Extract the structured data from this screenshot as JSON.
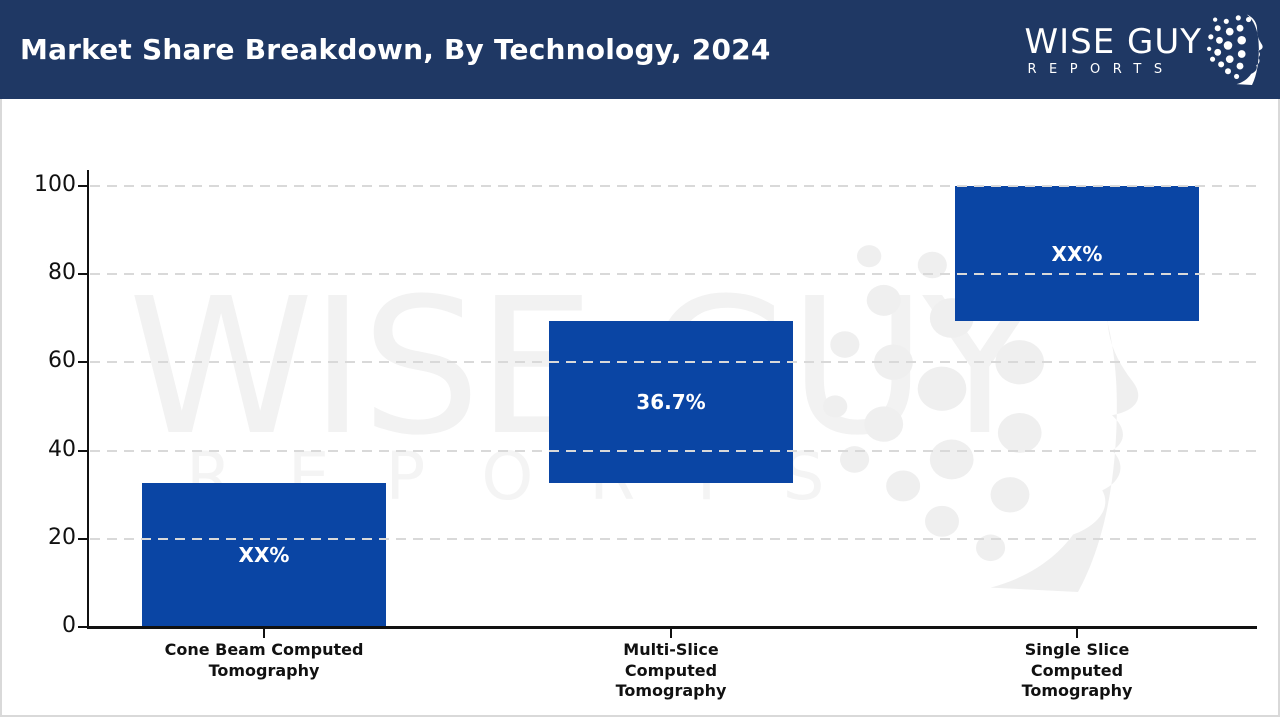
{
  "header": {
    "title": "Market Share Breakdown, By Technology, 2024",
    "logo": {
      "wordmark": "WISE GUY",
      "subtext": "REPORTS"
    }
  },
  "watermark": {
    "wordmark": "WISE GUY",
    "subtext": "REPORTS"
  },
  "chart_data": {
    "type": "bar",
    "variant": "waterfall-segments",
    "title": "Market Share Breakdown, By Technology, 2024",
    "categories": [
      [
        "Cone Beam Computed",
        "Tomography"
      ],
      [
        "Multi-Slice",
        "Computed",
        "Tomography"
      ],
      [
        "Single Slice",
        "Computed",
        "Tomography"
      ]
    ],
    "bars": [
      {
        "start": 0,
        "end": 32.6,
        "label": "XX%"
      },
      {
        "start": 32.6,
        "end": 69.3,
        "label": "36.7%",
        "value": 36.7
      },
      {
        "start": 69.3,
        "end": 100,
        "label": "XX%"
      }
    ],
    "yticks": [
      0,
      20,
      40,
      60,
      80,
      100
    ],
    "ylim": [
      0,
      105
    ],
    "xlabel": "",
    "ylabel": "",
    "grid": "horizontal-dashed",
    "legend": "none",
    "bar_color": "#0a45a4"
  },
  "colors": {
    "header_bg": "#1f3864",
    "bar": "#0a45a4",
    "axis": "#111111",
    "grid": "#d9d9d9",
    "text": "#111111",
    "bar_label": "#ffffff",
    "watermark": "#f2f2f2",
    "frame": "#d9d9d9"
  }
}
